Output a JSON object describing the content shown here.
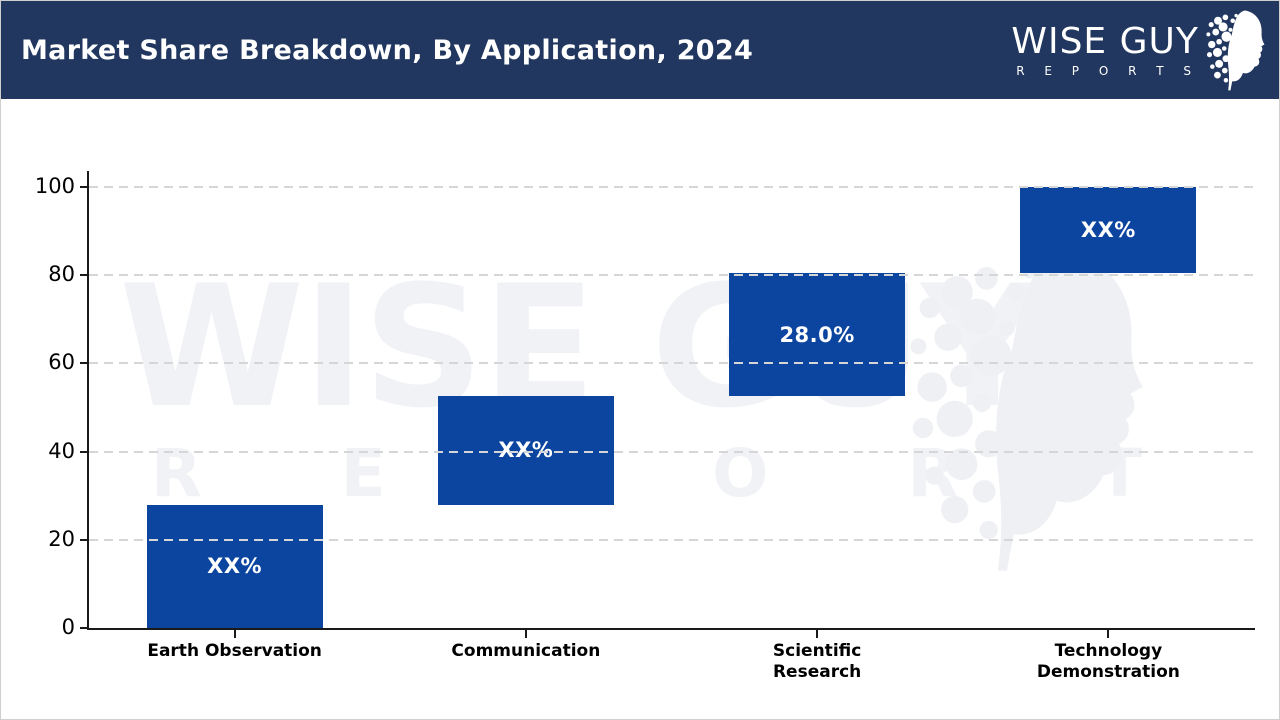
{
  "header": {
    "title": "Market Share Breakdown, By Application, 2024",
    "background_color": "#21375f",
    "logo": {
      "line1": "WISE GUY",
      "line2": "R E P O R T S"
    }
  },
  "watermark": {
    "line1": "WISE GUY",
    "line2": "R E P O R T S"
  },
  "chart_data": {
    "type": "bar",
    "subtype": "waterfall-stacked-breakdown",
    "title": "Market Share Breakdown, By Application, 2024",
    "categories": [
      "Earth Observation",
      "Communication",
      "Scientific Research",
      "Technology Demonstration"
    ],
    "xtick_labels": [
      "Earth Observation",
      "Communication",
      "Scientific\nResearch",
      "Technology\nDemonstration"
    ],
    "values": [
      28,
      24.5,
      28,
      19.5
    ],
    "cumulative_start": [
      0,
      28,
      52.5,
      80.5
    ],
    "cumulative_end": [
      28,
      52.5,
      80.5,
      100
    ],
    "bar_labels": [
      "XX%",
      "XX%",
      "28.0%",
      "XX%"
    ],
    "yticks": [
      0,
      20,
      40,
      60,
      80,
      100
    ],
    "ylim": [
      0,
      100
    ],
    "xlabel": "",
    "ylabel": "",
    "grid": true,
    "legend_position": "none",
    "bar_color": "#0c45a0",
    "grid_color": "#d6d6d6",
    "axis_color": "#1a1a1a",
    "bar_label_color": "#ffffff"
  }
}
